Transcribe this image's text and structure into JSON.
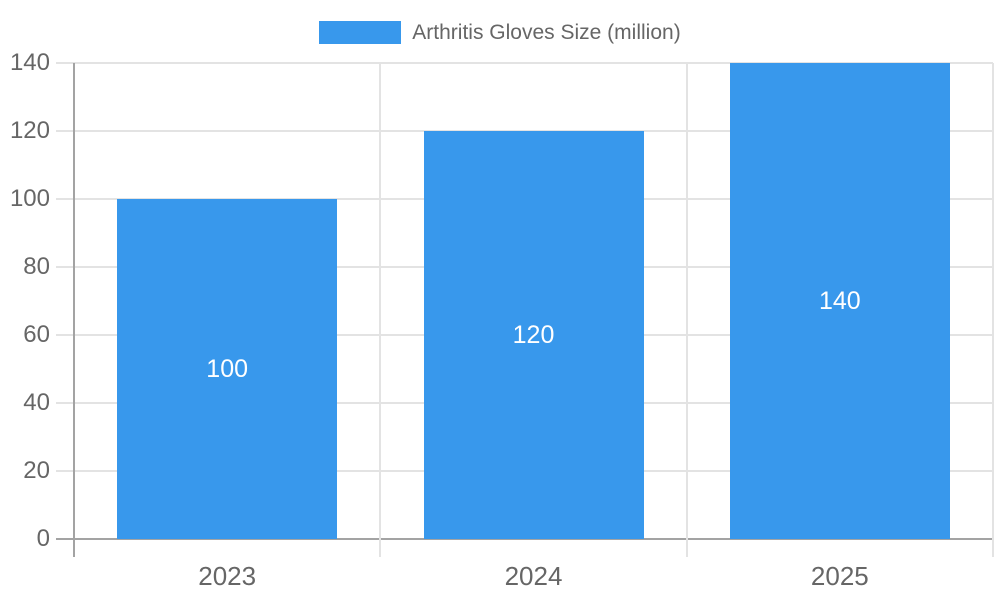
{
  "chart_data": {
    "type": "bar",
    "title": "",
    "legend_label": "Arthritis Gloves Size (million)",
    "legend_position": "top-center",
    "categories": [
      "2023",
      "2024",
      "2025"
    ],
    "series": [
      {
        "name": "Arthritis Gloves Size (million)",
        "values": [
          100,
          120,
          140
        ]
      }
    ],
    "data_labels": [
      "100",
      "120",
      "140"
    ],
    "xlabel": "",
    "ylabel": "",
    "ylim": [
      0,
      140
    ],
    "yticks": [
      0,
      20,
      40,
      60,
      80,
      100,
      120,
      140
    ],
    "grid": true,
    "colors": {
      "bar": "#3898EC",
      "bar_value_label": "#FFFFFF",
      "axis_text": "#666666",
      "legend_text": "#666666",
      "gridline": "#E3E3E3",
      "axis_line": "#A3A3A3",
      "background": "#FFFFFF"
    }
  }
}
